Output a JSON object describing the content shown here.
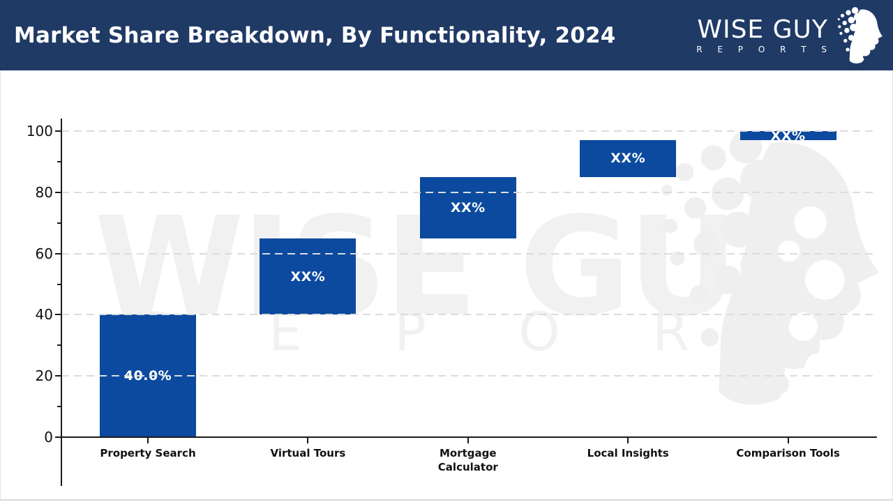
{
  "header": {
    "title": "Market Share Breakdown, By Functionality, 2024",
    "logo": {
      "wordmark": "WISE GUY",
      "subtext": "R E P O R T S"
    }
  },
  "watermark": {
    "wordmark": "WISE GUY",
    "subtext": "R E P O R T S"
  },
  "chart_data": {
    "type": "bar",
    "subtype": "waterfall",
    "title": "Market Share Breakdown, By Functionality, 2024",
    "xlabel": "",
    "ylabel": "",
    "ylim": [
      0,
      105
    ],
    "yticks": [
      0,
      20,
      40,
      60,
      80,
      100
    ],
    "minor_yticks": [
      10,
      30,
      50,
      70,
      90
    ],
    "grid": "horizontal-dashed",
    "legend": "none",
    "categories": [
      "Property Search",
      "Virtual Tours",
      "Mortgage Calculator",
      "Local Insights",
      "Comparison Tools"
    ],
    "category_label_lines": [
      [
        "Property Search"
      ],
      [
        "Virtual Tours"
      ],
      [
        "Mortgage",
        "Calculator"
      ],
      [
        "Local Insights"
      ],
      [
        "Comparison Tools"
      ]
    ],
    "segments": [
      {
        "category": "Property Search",
        "start": 0,
        "end": 40,
        "value": 40,
        "label": "40.0%"
      },
      {
        "category": "Virtual Tours",
        "start": 40,
        "end": 65,
        "value": 25,
        "label": "XX%"
      },
      {
        "category": "Mortgage Calculator",
        "start": 65,
        "end": 85,
        "value": 20,
        "label": "XX%"
      },
      {
        "category": "Local Insights",
        "start": 85,
        "end": 97,
        "value": 12,
        "label": "XX%"
      },
      {
        "category": "Comparison Tools",
        "start": 97,
        "end": 100,
        "value": 3,
        "label": "XX%"
      }
    ]
  },
  "colors": {
    "header_bg": "#203A66",
    "bar": "#0B4A9E",
    "bar_label": "#FFFFFF",
    "grid": "#DCDCDC",
    "axis": "#1A1A1A",
    "watermark": "#F1F1F1"
  }
}
